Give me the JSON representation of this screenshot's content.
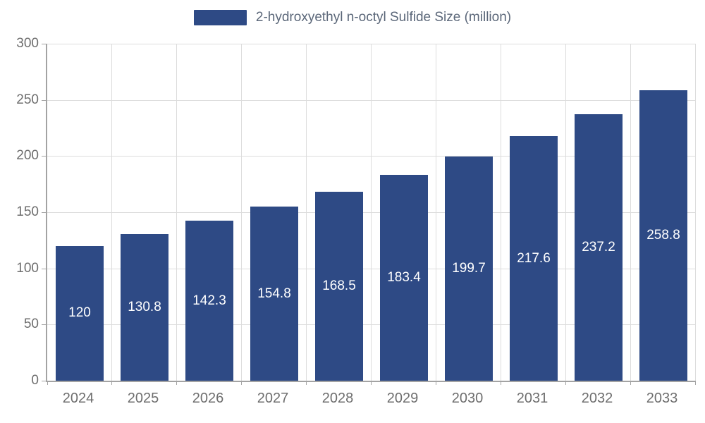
{
  "chart_data": {
    "type": "bar",
    "title": "2-hydroxyethyl n-octyl Sulfide Size (million)",
    "categories": [
      "2024",
      "2025",
      "2026",
      "2027",
      "2028",
      "2029",
      "2030",
      "2031",
      "2032",
      "2033"
    ],
    "values": [
      120,
      130.8,
      142.3,
      154.8,
      168.5,
      183.4,
      199.7,
      217.6,
      237.2,
      258.8
    ],
    "value_labels": [
      "120",
      "130.8",
      "142.3",
      "154.8",
      "168.5",
      "183.4",
      "199.7",
      "217.6",
      "237.2",
      "258.8"
    ],
    "xlabel": "",
    "ylabel": "",
    "ylim": [
      0,
      300
    ],
    "ytick_step": 50,
    "ytick_labels": [
      "0",
      "50",
      "100",
      "150",
      "200",
      "250",
      "300"
    ],
    "grid": true,
    "legend_position": "top",
    "bar_color": "#2e4a85",
    "value_label_color": "#ffffff"
  }
}
